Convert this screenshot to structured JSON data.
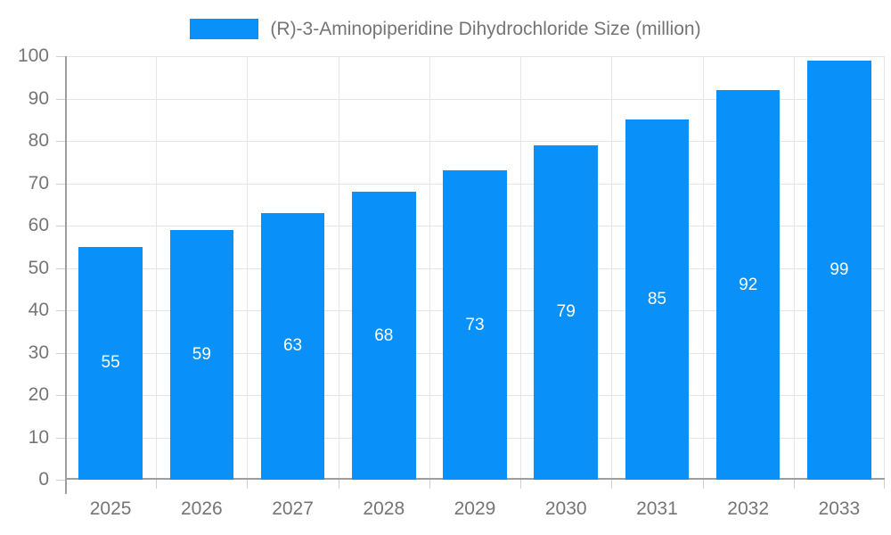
{
  "chart_data": {
    "type": "bar",
    "title": "(R)-3-Aminopiperidine Dihydrochloride Size (million)",
    "categories": [
      "2025",
      "2026",
      "2027",
      "2028",
      "2029",
      "2030",
      "2031",
      "2032",
      "2033"
    ],
    "values": [
      55,
      59,
      63,
      68,
      73,
      79,
      85,
      92,
      99
    ],
    "bar_value_labels": [
      "55",
      "59",
      "63",
      "68",
      "73",
      "79",
      "85",
      "92",
      "99"
    ],
    "xlabel": "",
    "ylabel": "",
    "ylim": [
      0,
      100
    ],
    "yticks": [
      0,
      10,
      20,
      30,
      40,
      50,
      60,
      70,
      80,
      90,
      100
    ],
    "grid": true,
    "legend_position": "top",
    "colors": {
      "bar": "#0991f9",
      "axis_label_text": "#757575",
      "bar_value_text": "#ffffff",
      "gridline": "#e5e5e5",
      "axis_line": "#9e9e9e",
      "tick_mark": "#cfcfcf"
    }
  }
}
